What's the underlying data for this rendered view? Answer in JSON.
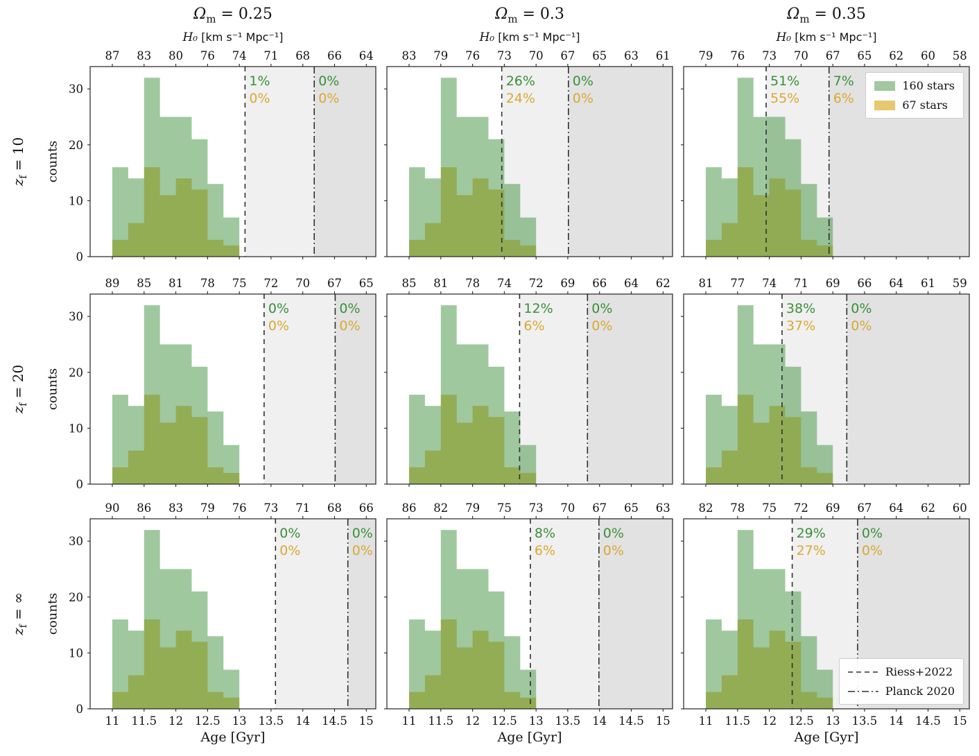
{
  "columns": [
    {
      "sym": "Ω",
      "sub": "m",
      "eq": " = 0.25"
    },
    {
      "sym": "Ω",
      "sub": "m",
      "eq": " = 0.3"
    },
    {
      "sym": "Ω",
      "sub": "m",
      "eq": " = 0.35"
    }
  ],
  "rows": [
    {
      "sym": "z",
      "sub": "f",
      "eq": " = 10"
    },
    {
      "sym": "z",
      "sub": "f",
      "eq": " = 20"
    },
    {
      "sym": "z",
      "sub": "f",
      "eq": " = ∞"
    }
  ],
  "axes": {
    "h0_main": "H₀",
    "h0_units": " [km s⁻¹ Mpc⁻¹]",
    "counts_label": "counts",
    "age_label": "Age [Gyr]"
  },
  "legend": {
    "lines": [
      {
        "label": "Riess+2022",
        "style": "dashed"
      },
      {
        "label": "Planck 2020",
        "style": "dashdot"
      }
    ]
  },
  "chart_data": {
    "type": "histogram-grid",
    "grid_rows": [
      "z_f = 10",
      "z_f = 20",
      "z_f = ∞"
    ],
    "grid_cols": [
      "Ω_m = 0.25",
      "Ω_m = 0.3",
      "Ω_m = 0.35"
    ],
    "xlabel": "Age [Gyr]",
    "ylabel": "counts",
    "top_axis_label": "H₀ [km s⁻¹ Mpc⁻¹]",
    "x_range": [
      10.65,
      15.15
    ],
    "y_range": [
      0,
      34
    ],
    "y_ticks": [
      0,
      10,
      20,
      30
    ],
    "age_ticks": [
      11,
      11.5,
      12,
      12.5,
      13,
      13.5,
      14,
      14.5,
      15
    ],
    "age_tick_labels": [
      "11",
      "11.5",
      "12",
      "12.5",
      "13",
      "13.5",
      "14",
      "14.5",
      "15"
    ],
    "bin_edges": [
      11.0,
      11.25,
      11.5,
      11.75,
      12.0,
      12.25,
      12.5,
      12.75,
      13.0
    ],
    "series": [
      {
        "name": "160 stars",
        "color": "rgba(64,145,64,0.5)",
        "legend_color": "#a2c8a2",
        "counts": [
          16,
          14,
          32,
          25,
          25,
          21,
          13,
          7
        ]
      },
      {
        "name": "67 stars",
        "color": "rgba(224,186,70,0.8)",
        "legend_color": "#e6c96e",
        "counts": [
          3,
          6,
          16,
          11,
          14,
          12,
          3,
          2
        ]
      }
    ],
    "pct_colors": {
      "green": "#3a8f3a",
      "yellow": "#d9a832"
    },
    "shade_colors": {
      "light": "#f0f0f0",
      "dark": "#e2e2e2"
    },
    "line_color": "#2f2f2f",
    "reference_lines": [
      {
        "name": "Riess+2022",
        "style": "dashed"
      },
      {
        "name": "Planck 2020",
        "style": "dashdot"
      }
    ],
    "panels": [
      {
        "row": 0,
        "col": 0,
        "h0_ticks": [
          "87",
          "83",
          "80",
          "76",
          "74",
          "71",
          "68",
          "66",
          "64"
        ],
        "riess_age": 13.09,
        "planck_age": 14.18,
        "riess_pct": [
          "1%",
          "0%"
        ],
        "planck_pct": [
          "0%",
          "0%"
        ]
      },
      {
        "row": 0,
        "col": 1,
        "h0_ticks": [
          "83",
          "79",
          "76",
          "73",
          "70",
          "67",
          "65",
          "63",
          "61"
        ],
        "riess_age": 12.46,
        "planck_age": 13.51,
        "riess_pct": [
          "26%",
          "24%"
        ],
        "planck_pct": [
          "0%",
          "0%"
        ]
      },
      {
        "row": 0,
        "col": 2,
        "h0_ticks": [
          "79",
          "76",
          "73",
          "70",
          "67",
          "65",
          "62",
          "60",
          "58"
        ],
        "riess_age": 11.95,
        "planck_age": 12.94,
        "riess_pct": [
          "51%",
          "55%"
        ],
        "planck_pct": [
          "7%",
          "6%"
        ]
      },
      {
        "row": 1,
        "col": 0,
        "h0_ticks": [
          "89",
          "85",
          "81",
          "78",
          "75",
          "72",
          "70",
          "67",
          "65"
        ],
        "riess_age": 13.39,
        "planck_age": 14.51,
        "riess_pct": [
          "0%",
          "0%"
        ],
        "planck_pct": [
          "0%",
          "0%"
        ]
      },
      {
        "row": 1,
        "col": 1,
        "h0_ticks": [
          "85",
          "81",
          "78",
          "74",
          "72",
          "69",
          "66",
          "64",
          "62"
        ],
        "riess_age": 12.74,
        "planck_age": 13.81,
        "riess_pct": [
          "12%",
          "6%"
        ],
        "planck_pct": [
          "0%",
          "0%"
        ]
      },
      {
        "row": 1,
        "col": 2,
        "h0_ticks": [
          "81",
          "77",
          "74",
          "71",
          "69",
          "66",
          "64",
          "61",
          "59"
        ],
        "riess_age": 12.2,
        "planck_age": 13.22,
        "riess_pct": [
          "38%",
          "37%"
        ],
        "planck_pct": [
          "0%",
          "0%"
        ]
      },
      {
        "row": 2,
        "col": 0,
        "h0_ticks": [
          "90",
          "86",
          "83",
          "79",
          "76",
          "73",
          "71",
          "68",
          "66"
        ],
        "riess_age": 13.57,
        "planck_age": 14.71,
        "riess_pct": [
          "0%",
          "0%"
        ],
        "planck_pct": [
          "0%",
          "0%"
        ]
      },
      {
        "row": 2,
        "col": 1,
        "h0_ticks": [
          "86",
          "82",
          "79",
          "75",
          "73",
          "70",
          "67",
          "65",
          "63"
        ],
        "riess_age": 12.91,
        "planck_age": 13.99,
        "riess_pct": [
          "8%",
          "6%"
        ],
        "planck_pct": [
          "0%",
          "0%"
        ]
      },
      {
        "row": 2,
        "col": 2,
        "h0_ticks": [
          "82",
          "78",
          "75",
          "72",
          "69",
          "67",
          "64",
          "62",
          "60"
        ],
        "riess_age": 12.36,
        "planck_age": 13.39,
        "riess_pct": [
          "29%",
          "27%"
        ],
        "planck_pct": [
          "0%",
          "0%"
        ]
      }
    ]
  }
}
